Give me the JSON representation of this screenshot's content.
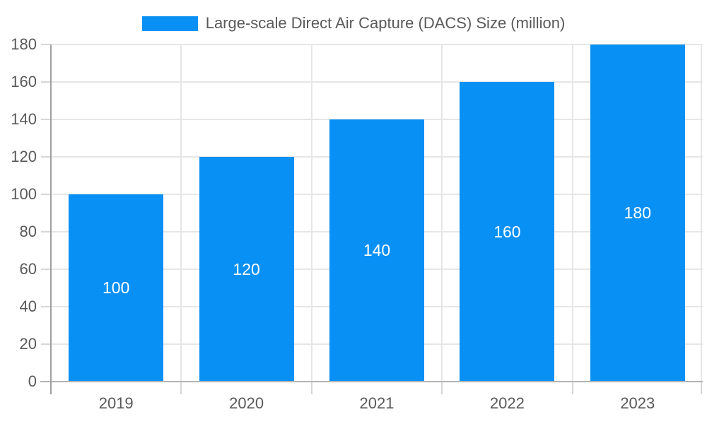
{
  "chart_data": {
    "type": "bar",
    "title": "",
    "categories": [
      "2019",
      "2020",
      "2021",
      "2022",
      "2023"
    ],
    "series": [
      {
        "name": "Large-scale Direct Air Capture (DACS) Size (million)",
        "values": [
          100,
          120,
          140,
          160,
          180
        ]
      }
    ],
    "bar_value_labels": [
      "100",
      "120",
      "140",
      "160",
      "180"
    ],
    "y_tick_labels": [
      "0",
      "20",
      "40",
      "60",
      "80",
      "100",
      "120",
      "140",
      "160",
      "180"
    ],
    "xlabel": "",
    "ylabel": "",
    "ylim": [
      0,
      180
    ],
    "ytick_step": 20,
    "grid": true,
    "legend_position": "top",
    "colors": {
      "bar": "#0990f5",
      "bar_label_text": "#ffffff",
      "axis_text": "#595959",
      "legend_text": "#595959",
      "grid_line": "#e6e6e6",
      "tick_line": "#d6d6d6",
      "x_axis_line": "#b3b3b3",
      "y_axis_line": "#a0a0a0",
      "background": "#ffffff"
    }
  }
}
